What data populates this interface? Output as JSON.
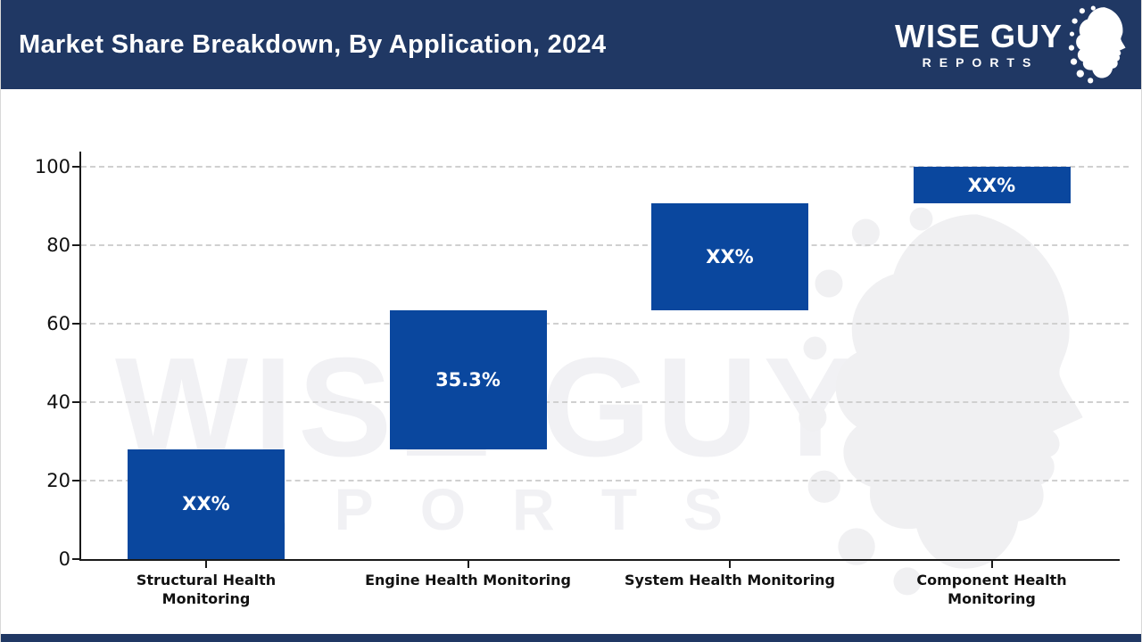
{
  "header": {
    "title": "Market Share Breakdown, By Application, 2024",
    "bg_color": "#203864",
    "logo": {
      "line1": "WISE GUY",
      "line2": "REPORTS"
    }
  },
  "watermark": {
    "line1": "WISE GUY",
    "line2": "REPORTS"
  },
  "chart_data": {
    "type": "bar",
    "subtype": "floating-segment-waterfall",
    "title": "Market Share Breakdown, By Application, 2024",
    "categories": [
      "Structural Health Monitoring",
      "Engine Health Monitoring",
      "System Health Monitoring",
      "Component Health Monitoring"
    ],
    "bars": [
      {
        "category": "Structural Health Monitoring",
        "start": 0,
        "end": 28,
        "label": "XX%"
      },
      {
        "category": "Engine Health Monitoring",
        "start": 28,
        "end": 63.3,
        "label": "35.3%"
      },
      {
        "category": "System Health Monitoring",
        "start": 63.3,
        "end": 90.6,
        "label": "XX%"
      },
      {
        "category": "Component Health Monitoring",
        "start": 90.6,
        "end": 100,
        "label": "XX%"
      }
    ],
    "xlabel": "",
    "ylabel": "",
    "yticks": [
      0,
      20,
      40,
      60,
      80,
      100
    ],
    "ylim": [
      0,
      100
    ],
    "grid": "horizontal-dashed",
    "legend": "none",
    "bar_color": "#0a479e",
    "bar_label_color": "#ffffff",
    "unit": "%"
  }
}
